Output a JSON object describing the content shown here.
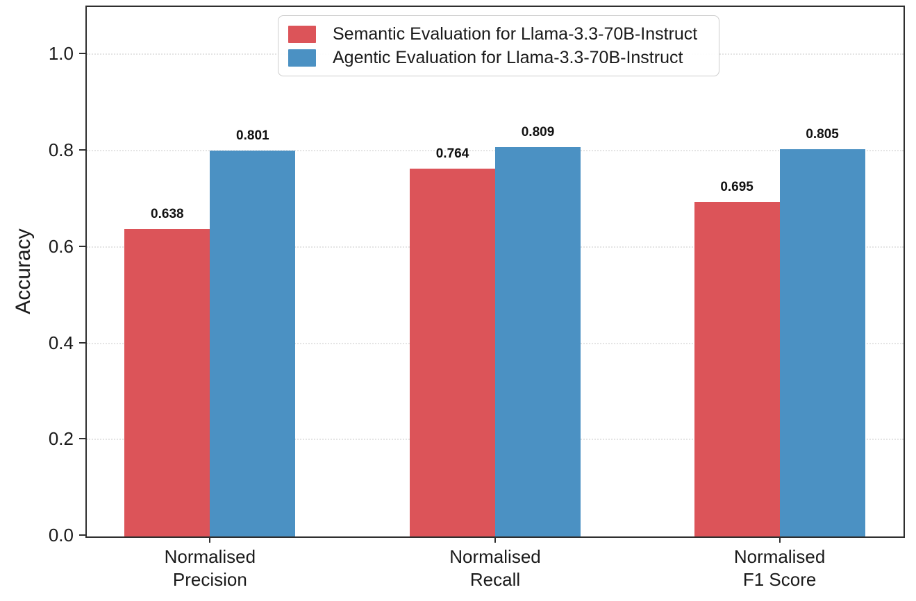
{
  "chart_data": {
    "type": "bar",
    "title": "",
    "xlabel": "",
    "ylabel": "Accuracy",
    "ylim": [
      0,
      1.1
    ],
    "ytick_labels": [
      "0.0",
      "0.2",
      "0.4",
      "0.6",
      "0.8",
      "1.0"
    ],
    "ytick_values": [
      0.0,
      0.2,
      0.4,
      0.6,
      0.8,
      1.0
    ],
    "grid": "horizontal dotted gridlines at y ticks",
    "legend_position": "upper center",
    "categories": [
      [
        "Normalised",
        "Precision"
      ],
      [
        "Normalised",
        "Recall"
      ],
      [
        "Normalised",
        "F1 Score"
      ]
    ],
    "series": [
      {
        "name": "Semantic Evaluation for Llama-3.3-70B-Instruct",
        "color": "#DC5459",
        "values": [
          0.638,
          0.764,
          0.695
        ],
        "value_labels": [
          "0.638",
          "0.764",
          "0.695"
        ]
      },
      {
        "name": "Agentic Evaluation for Llama-3.3-70B-Instruct",
        "color": "#4B91C3",
        "values": [
          0.801,
          0.809,
          0.805
        ],
        "value_labels": [
          "0.801",
          "0.809",
          "0.805"
        ]
      }
    ]
  },
  "colors": {
    "semantic_series": "#DC5459",
    "agentic_series": "#4B91C3",
    "spine": "#2f2f2f",
    "grid": "#e4e4e4",
    "text": "#1a1a1a"
  }
}
